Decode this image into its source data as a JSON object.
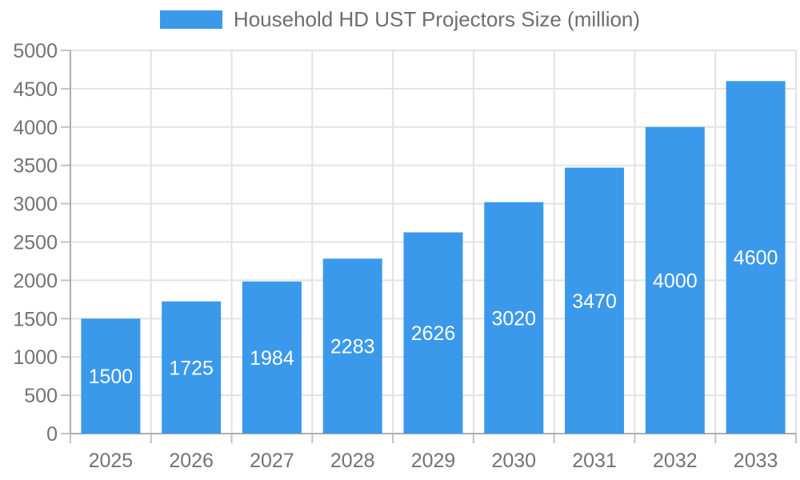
{
  "chart_data": {
    "type": "bar",
    "title": "",
    "legend": {
      "position": "top",
      "label": "Household HD UST Projectors Size (million)"
    },
    "categories": [
      "2025",
      "2026",
      "2027",
      "2028",
      "2029",
      "2030",
      "2031",
      "2032",
      "2033"
    ],
    "series": [
      {
        "name": "Household HD UST Projectors Size (million)",
        "values": [
          1500,
          1725,
          1984,
          2283,
          2626,
          3020,
          3470,
          4000,
          4600
        ]
      }
    ],
    "xlabel": "",
    "ylabel": "",
    "ylim": [
      0,
      5000
    ],
    "ytick_step": 500,
    "yticks": [
      0,
      500,
      1000,
      1500,
      2000,
      2500,
      3000,
      3500,
      4000,
      4500,
      5000
    ],
    "grid": "horizontal and vertical gridlines on",
    "data_labels": {
      "show": true,
      "position": "center-of-bar",
      "color": "#ffffff"
    },
    "colors": {
      "bar": "#3b99ec",
      "grid": "#e3e3e3",
      "axis": "#aeaeae",
      "tick": "#c2c2c2",
      "tick_label": "#737373",
      "legend_text": "#6e6e6e",
      "background": "#ffffff"
    }
  }
}
